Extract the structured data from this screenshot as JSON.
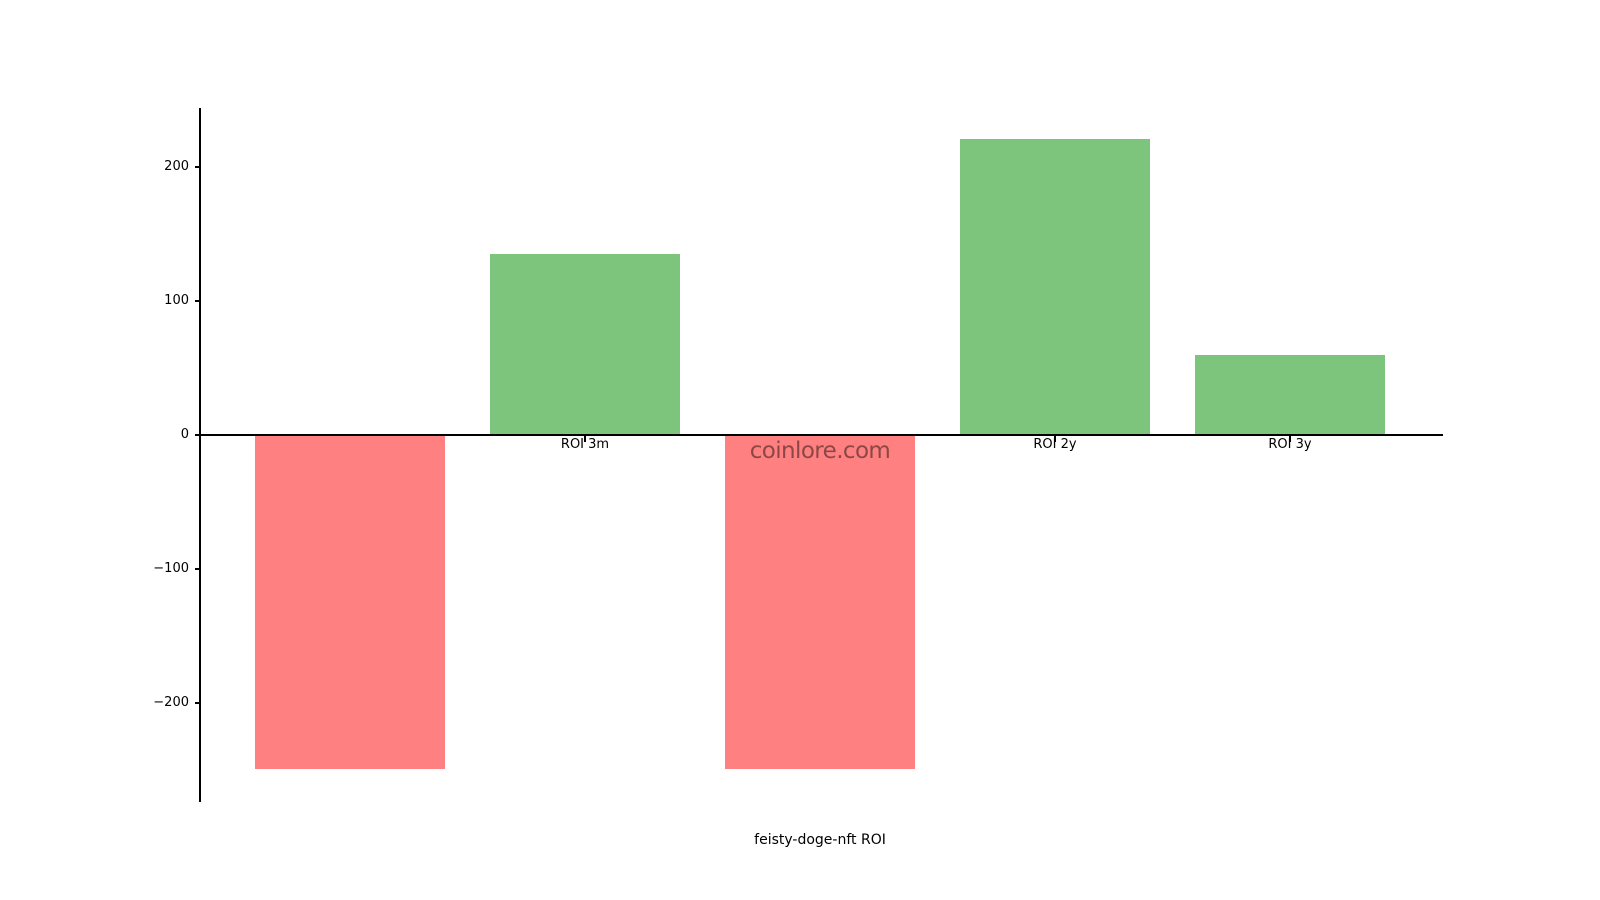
{
  "chart_data": {
    "type": "bar",
    "categories": [
      "",
      "ROI 3m",
      "",
      "ROI 2y",
      "ROI 3y"
    ],
    "values": [
      -249,
      135,
      -249,
      221,
      60
    ],
    "bar_colors": [
      "#ff8080",
      "#7dc57d",
      "#ff8080",
      "#7dc57d",
      "#7dc57d"
    ],
    "positive_color": "#7dc57d",
    "negative_color": "#ff8080",
    "title": "",
    "xlabel": "feisty-doge-nft ROI",
    "ylabel": "",
    "ylim": [
      -273,
      243
    ],
    "y_ticks": {
      "values": [
        200,
        100,
        0,
        -100,
        -200
      ],
      "labels": [
        "200",
        "100",
        "0",
        "−100",
        "−200"
      ]
    },
    "grid": false,
    "legend": false,
    "axis_color": "#000000"
  },
  "watermark": {
    "text": "coinlore.com"
  }
}
